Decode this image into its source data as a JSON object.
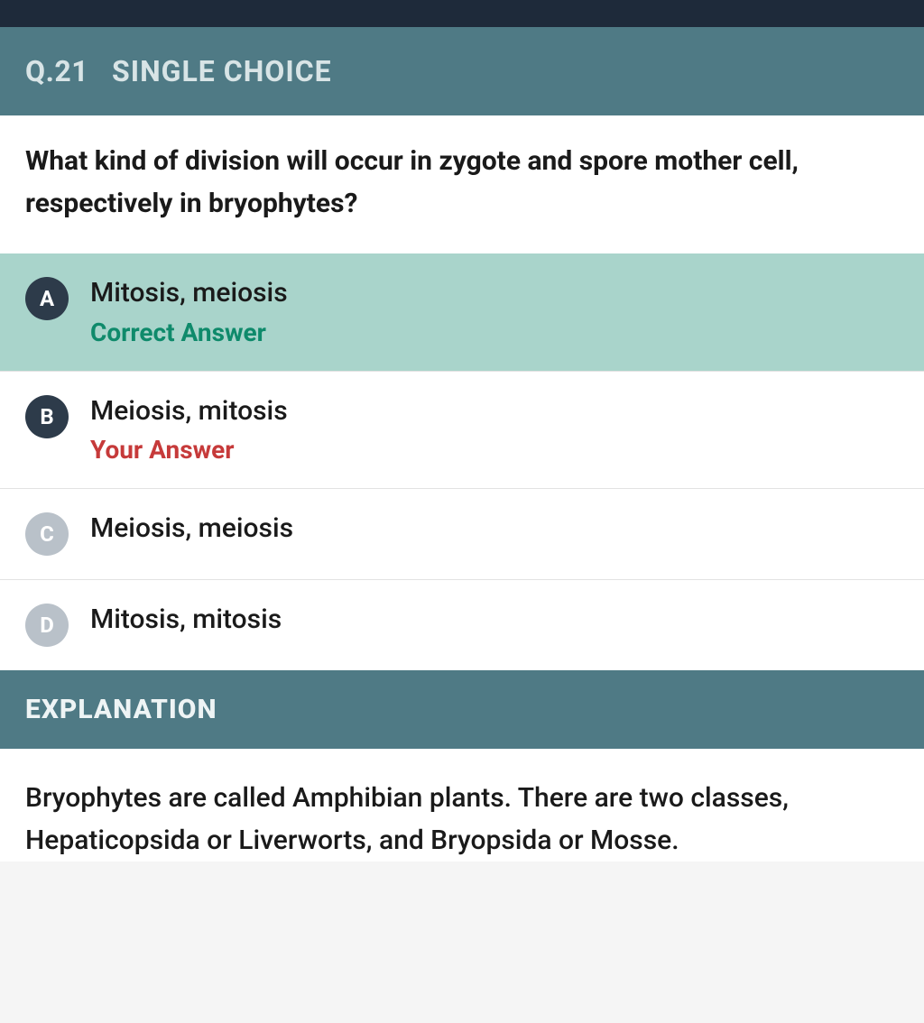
{
  "colors": {
    "header_band": "#4f7a85",
    "correct_bg": "#a9d4cb",
    "correct_text": "#0f8a6b",
    "your_text": "#c63a3a",
    "badge_dark": "#2d3b4a",
    "badge_muted": "#b9c1c9",
    "page_bg": "#ffffff",
    "text": "#1a1a1a",
    "divider": "#e2e2e2"
  },
  "header": {
    "question_number": "Q.21",
    "question_type": "SINGLE CHOICE"
  },
  "question": {
    "text": "What kind of division will occur in zygote and spore mother cell, respectively in bryophytes?"
  },
  "options": [
    {
      "letter": "A",
      "text": "Mitosis, meiosis",
      "state": "correct",
      "annotation": "Correct Answer"
    },
    {
      "letter": "B",
      "text": "Meiosis, mitosis",
      "state": "your",
      "annotation": "Your Answer"
    },
    {
      "letter": "C",
      "text": "Meiosis, meiosis",
      "state": "none",
      "annotation": ""
    },
    {
      "letter": "D",
      "text": "Mitosis, mitosis",
      "state": "none",
      "annotation": ""
    }
  ],
  "explanation": {
    "label": "EXPLANATION",
    "text": "Bryophytes are called Amphibian plants. There are two classes, Hepaticopsida or Liverworts, and Bryopsida or Mosse."
  }
}
